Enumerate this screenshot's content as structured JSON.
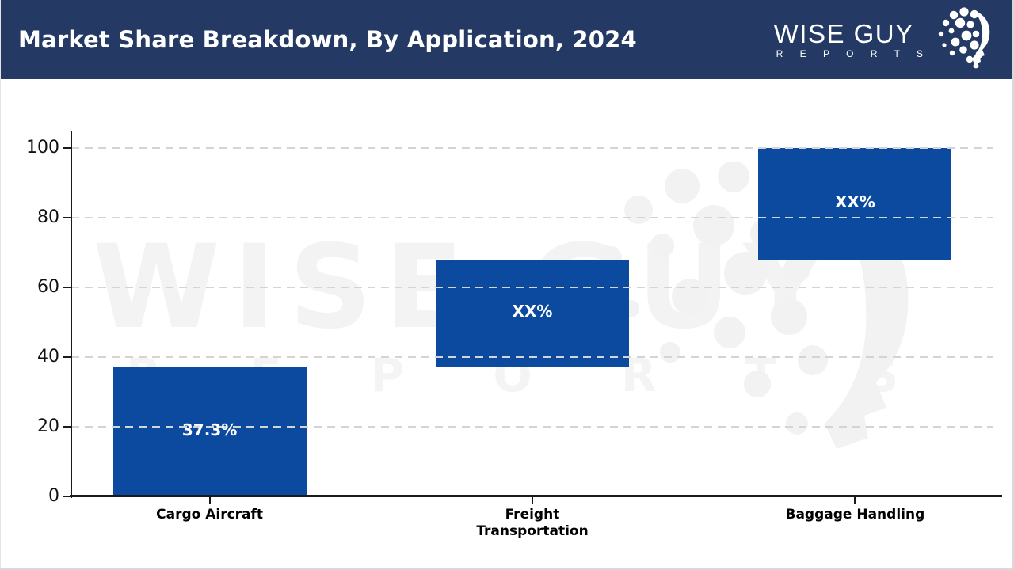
{
  "header": {
    "title": "Market Share Breakdown, By Application, 2024",
    "logo": {
      "line1": "WISE GUY",
      "line2": "R E P O R T S"
    }
  },
  "watermark": {
    "line1": "WISE GUY",
    "line2": "R E P O R T S"
  },
  "colors": {
    "header_bg": "#243a64",
    "bar": "#0b4a9f",
    "gridline": "#d4d4d4",
    "axis": "#1a1a1a",
    "value_label": "#ffffff",
    "watermark": "#f3f3f3"
  },
  "chart_data": {
    "type": "bar",
    "variant": "waterfall-stacked-segments",
    "title": "Market Share Breakdown, By Application, 2024",
    "categories": [
      "Cargo Aircraft",
      "Freight Transportation",
      "Baggage Handling"
    ],
    "bars": [
      {
        "category": "Cargo Aircraft",
        "label_lines": [
          "Cargo Aircraft"
        ],
        "start": 0,
        "end": 37.3,
        "value_label": "37.3%"
      },
      {
        "category": "Freight Transportation",
        "label_lines": [
          "Freight",
          "Transportation"
        ],
        "start": 37.3,
        "end": 68,
        "value_label": "XX%"
      },
      {
        "category": "Baggage Handling",
        "label_lines": [
          "Baggage Handling"
        ],
        "start": 68,
        "end": 100,
        "value_label": "XX%"
      }
    ],
    "xlabel": "",
    "ylabel": "",
    "ylim": [
      0,
      100
    ],
    "y_ticks": [
      0,
      20,
      40,
      60,
      80,
      100
    ],
    "grid": "horizontal-dashed",
    "legend": "none",
    "bar_color": "#0b4a9f",
    "value_label_color": "#ffffff"
  }
}
